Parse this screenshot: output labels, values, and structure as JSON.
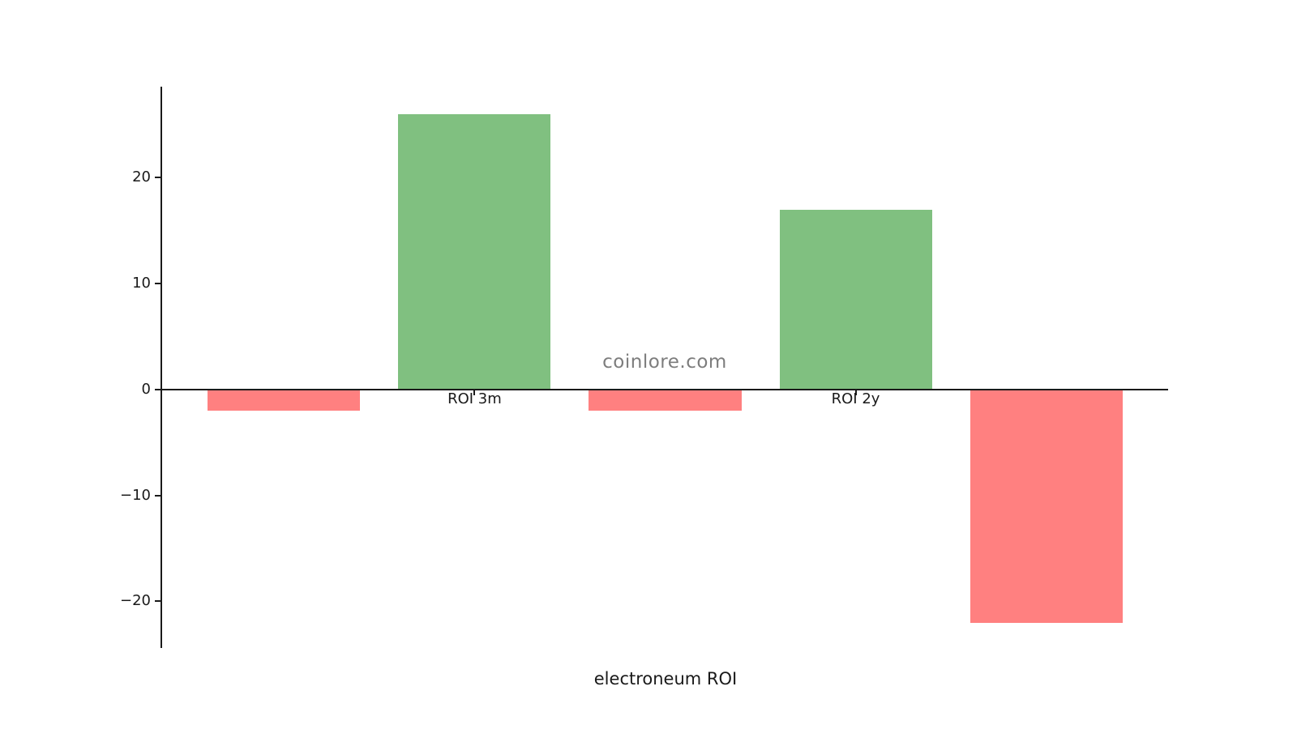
{
  "chart_data": {
    "type": "bar",
    "title": "",
    "xlabel": "electroneum ROI",
    "ylabel": "",
    "watermark": "coinlore.com",
    "categories": [
      "",
      "ROI 3m",
      "",
      "ROI 2y",
      ""
    ],
    "values": [
      -2,
      26,
      -2,
      17,
      -22
    ],
    "bar_width": 0.8,
    "xlim": [
      -0.64,
      4.64
    ],
    "ylim": [
      -24.4,
      28.6
    ],
    "yticks": [
      {
        "value": 20,
        "label": "20"
      },
      {
        "value": 10,
        "label": "10"
      },
      {
        "value": 0,
        "label": "0"
      },
      {
        "value": -10,
        "label": "−10"
      },
      {
        "value": -20,
        "label": "−20"
      }
    ],
    "xticks": [
      {
        "position": 1,
        "label": "ROI 3m"
      },
      {
        "position": 3,
        "label": "ROI 2y"
      }
    ],
    "grid": false,
    "legend": null,
    "colors": {
      "positive": "#80c080",
      "negative": "#ff8080",
      "axis": "#1a1a1a",
      "text": "#1a1a1a",
      "watermark": "#7d7d7d",
      "background": "#ffffff"
    }
  }
}
